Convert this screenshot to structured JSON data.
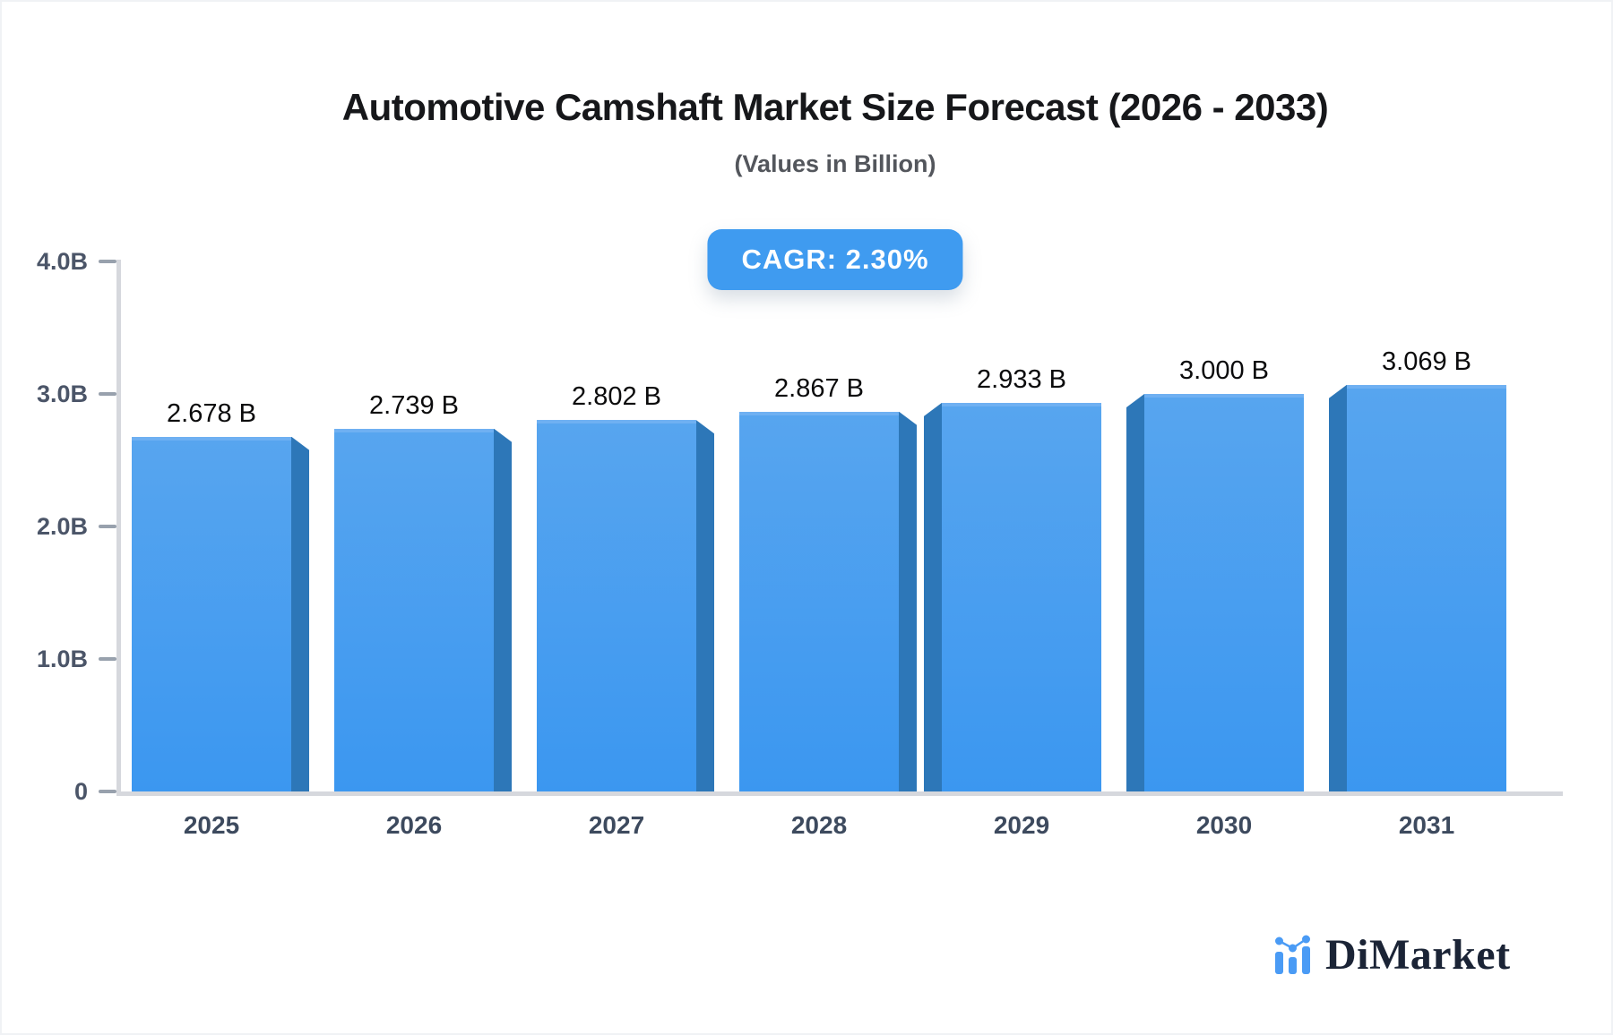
{
  "header": {
    "title": "Automotive Camshaft Market Size Forecast (2026 - 2033)",
    "subtitle": "(Values in Billion)",
    "cagr_badge": "CAGR: 2.30%",
    "badge_color": "#3f9bf0"
  },
  "chart_data": {
    "type": "bar",
    "categories": [
      "2025",
      "2026",
      "2027",
      "2028",
      "2029",
      "2030",
      "2031"
    ],
    "values": [
      2.678,
      2.739,
      2.802,
      2.867,
      2.933,
      3.0,
      3.069
    ],
    "value_labels": [
      "2.678 B",
      "2.739 B",
      "2.802 B",
      "2.867 B",
      "2.933 B",
      "3.000 B",
      "3.069 B"
    ],
    "title": "Automotive Camshaft Market Size Forecast (2026 - 2033)",
    "subtitle": "(Values in Billion)",
    "xlabel": "",
    "ylabel": "",
    "ylim": [
      0,
      4.0
    ],
    "ytick_labels": [
      "4.0B",
      "3.0B",
      "2.0B",
      "1.0B",
      "0"
    ],
    "ytick_values": [
      4.0,
      3.0,
      2.0,
      1.0,
      0
    ],
    "grid": false,
    "legend": "none",
    "bar_color_top": "#57a5ef",
    "bar_color_bottom": "#3b97f0",
    "bar_color_highlight": "#6fb0f2",
    "bar_side_color": "#2d77b8",
    "axis_line_color": "#d6d8dd",
    "tick_color": "#98a1ad"
  },
  "footer": {
    "brand": "DiMarket",
    "logo_color": "#4a9bf5",
    "brand_color": "#1b2436"
  }
}
